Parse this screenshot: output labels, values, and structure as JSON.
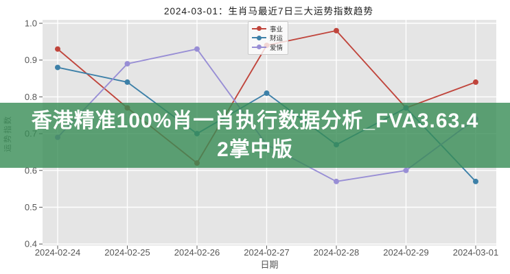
{
  "title": "2024-03-01：生肖马最近7日三大运势指数趋势",
  "overlay": {
    "full_text": "香港精准100%肖一肖执行数据分析_FVA3.63.42掌中版",
    "line1": "香港精准100%肖一肖执行数据分析_FVA3.63.4",
    "line2": "2掌中版"
  },
  "chart_data": {
    "type": "line",
    "title": "2024-03-01：生肖马最近7日三大运势指数趋势",
    "x": [
      "2024-02-24",
      "2024-02-25",
      "2024-02-26",
      "2024-02-27",
      "2024-02-28",
      "2024-02-29",
      "2024-03-01"
    ],
    "xlabel": "日期",
    "ylabel": "运势指数",
    "ylim": [
      0.4,
      1.0
    ],
    "y_ticks": [
      "1.0",
      "0.9",
      "0.8",
      "0.7",
      "0.6",
      "0.5",
      "0.4"
    ],
    "grid": true,
    "legend_position": "top-center",
    "series": [
      {
        "name": "事业",
        "color": "#c0453c",
        "values": [
          0.93,
          0.77,
          0.62,
          0.94,
          0.98,
          0.77,
          0.84
        ]
      },
      {
        "name": "财运",
        "color": "#3d80a8",
        "values": [
          0.88,
          0.84,
          0.7,
          0.81,
          0.67,
          0.77,
          0.57
        ]
      },
      {
        "name": "爱情",
        "color": "#988ed5",
        "values": [
          0.69,
          0.89,
          0.93,
          0.67,
          0.57,
          0.6,
          0.74
        ]
      }
    ]
  },
  "colors": {
    "plot_bg": "#e5e5e5",
    "grid": "#ffffff",
    "tick_text": "#555555",
    "title_text": "#1c1c1c",
    "overlay_bg": "rgba(55,140,85,0.8)",
    "overlay_text": "#ffffff",
    "legend_bg": "rgba(255,255,255,0.78)",
    "legend_border": "#c9c9c9"
  }
}
